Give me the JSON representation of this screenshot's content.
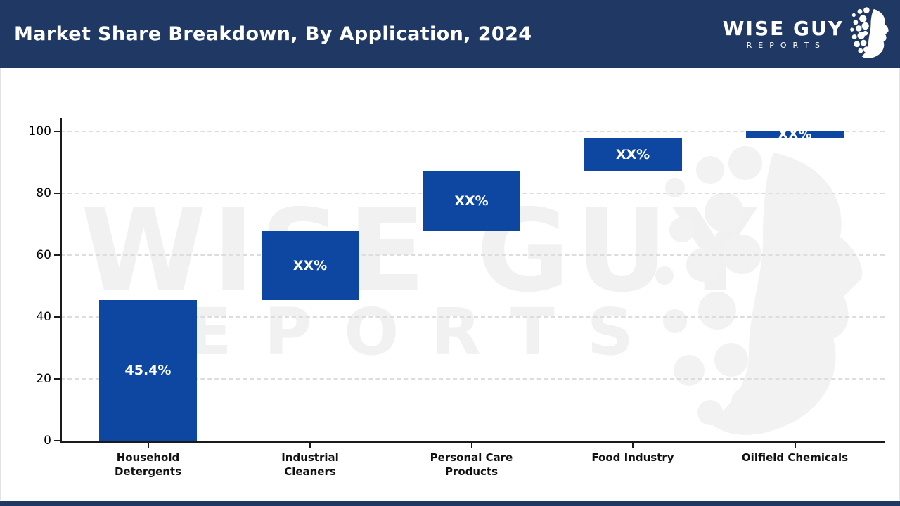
{
  "header": {
    "title": "Market Share Breakdown, By Application, 2024",
    "logo": {
      "line1": "WISE GUY",
      "line2": "REPORTS"
    }
  },
  "watermark": {
    "line1": "WISE GUY",
    "line2": "REPORTS"
  },
  "chart_data": {
    "type": "bar",
    "variant": "waterfall",
    "title": "Market Share Breakdown, By Application, 2024",
    "categories": [
      [
        "Household",
        "Detergents"
      ],
      [
        "Industrial",
        "Cleaners"
      ],
      [
        "Personal Care",
        "Products"
      ],
      [
        "Food Industry"
      ],
      [
        "Oilfield Chemicals"
      ]
    ],
    "segments": [
      {
        "start": 0,
        "end": 45.4,
        "label": "45.4%"
      },
      {
        "start": 45.4,
        "end": 68,
        "label": "XX%"
      },
      {
        "start": 68,
        "end": 87,
        "label": "XX%"
      },
      {
        "start": 87,
        "end": 98,
        "label": "XX%"
      },
      {
        "start": 98,
        "end": 100,
        "label": "XX%"
      }
    ],
    "xlabel": "",
    "ylabel": "",
    "ylim": [
      0,
      100
    ],
    "yticks": [
      0,
      20,
      40,
      60,
      80,
      100
    ],
    "grid": "dashed-horizontal",
    "legend": "none"
  },
  "colors": {
    "header_bg": "#1f3864",
    "footer_bg": "#1f3864",
    "bar": "#0d47a1",
    "bar_label": "#ffffff",
    "axis": "#1a1a1a",
    "grid": "#dddddd",
    "watermark": "#f1f1f1",
    "frame_border": "#d9d9d9"
  }
}
